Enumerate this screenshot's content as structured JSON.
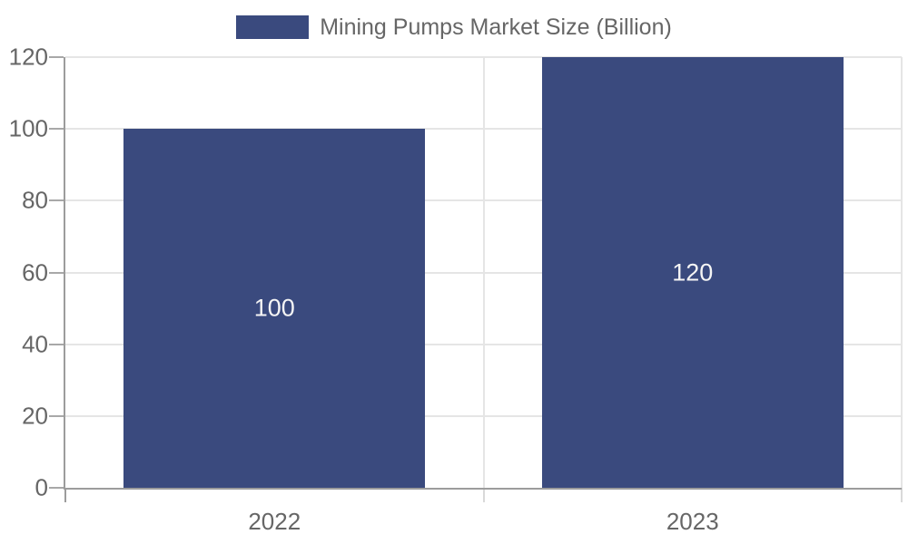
{
  "chart_data": {
    "type": "bar",
    "title": "",
    "series_label": "Mining Pumps Market Size (Billion)",
    "categories": [
      "2022",
      "2023"
    ],
    "values": [
      100,
      120
    ],
    "xlabel": "",
    "ylabel": "",
    "ylim": [
      0,
      120
    ],
    "yticks": [
      0,
      20,
      40,
      60,
      80,
      100,
      120
    ],
    "grid": true,
    "legend_position": "top-center",
    "bar_width_fraction": 0.72,
    "colors": {
      "bar": "#3A4A7E",
      "value_label": "#F5F5F5",
      "axis_line": "#9C9C9C",
      "gridline": "#E5E5E5",
      "tick_mark_y": "#A8A8A8",
      "tick_mark_x": "#D9D9D9",
      "tick_label": "#666666",
      "legend_text": "#666666",
      "background": "#FFFFFF"
    }
  }
}
